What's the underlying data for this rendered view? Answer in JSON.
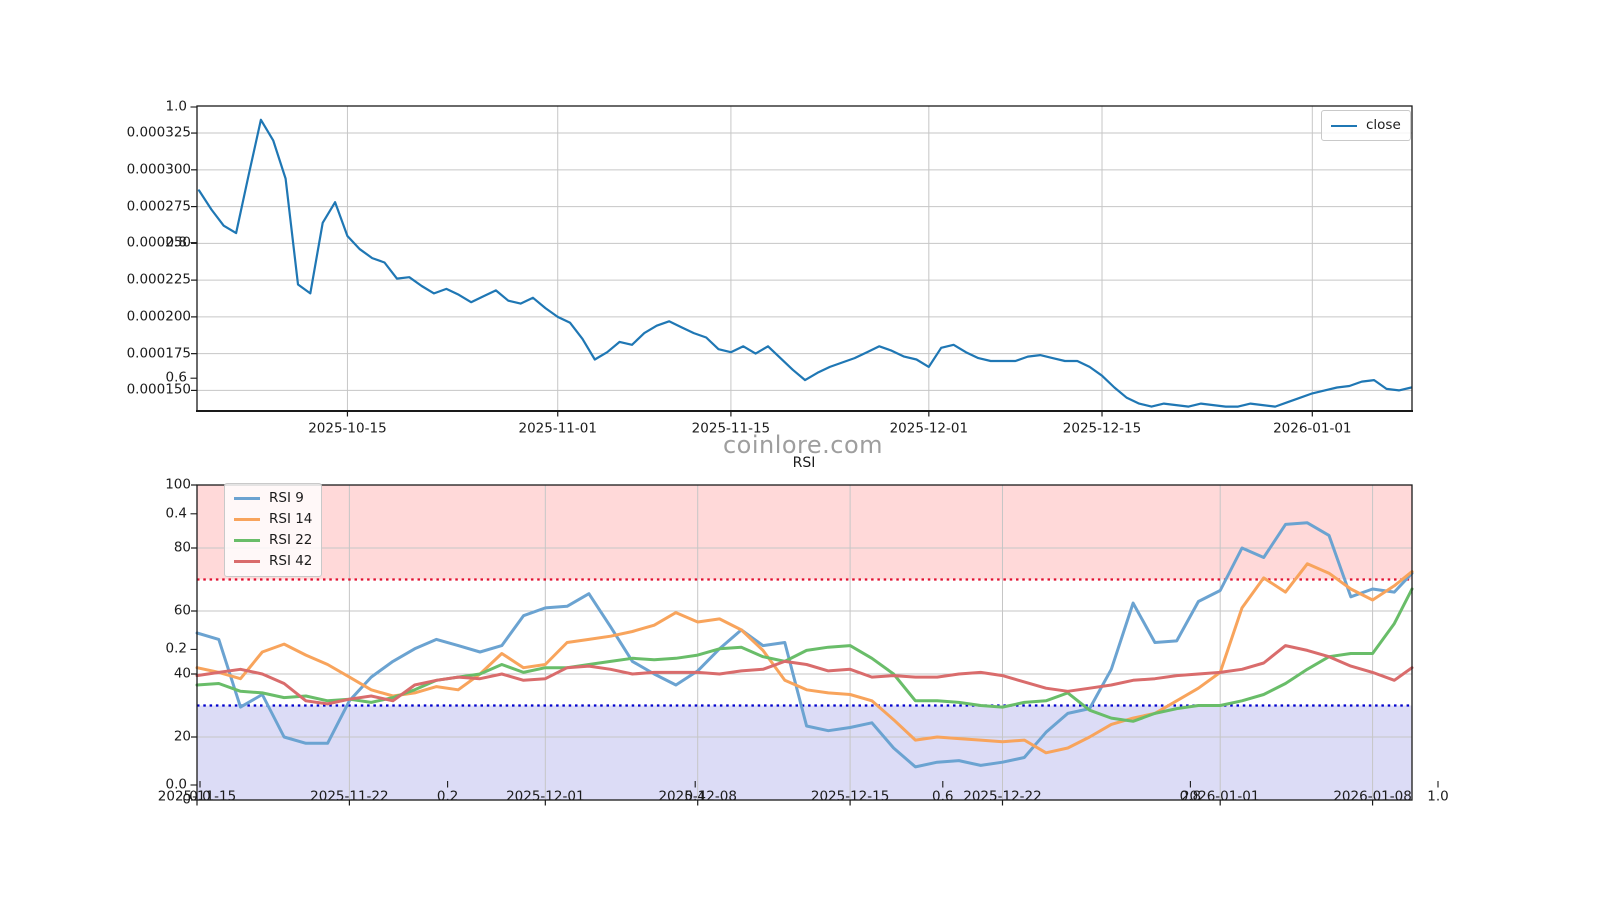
{
  "watermark": {
    "text": "coinlore.com",
    "color": "#8e8e8e"
  },
  "overlay_axis": {
    "y_tick_labels": [
      "1.0",
      "0.8",
      "0.6",
      "0.4",
      "0.2",
      "0.0"
    ],
    "x_tick_labels": [
      "0.0",
      "0.2",
      "0.4",
      "0.6",
      "0.8",
      "1.0"
    ]
  },
  "chart_data": [
    {
      "id": "price",
      "type": "line",
      "title": "",
      "grid": true,
      "legend_position": "upper right",
      "x_tick_labels": [
        "2025-10-15",
        "2025-11-01",
        "2025-11-15",
        "2025-12-01",
        "2025-12-15",
        "2026-01-01"
      ],
      "x_tick_day_offsets": [
        12,
        29,
        43,
        59,
        73,
        90
      ],
      "y_tick_labels": [
        "0.000150",
        "0.000175",
        "0.000200",
        "0.000225",
        "0.000250",
        "0.000275",
        "0.000300",
        "0.000325"
      ],
      "y_tick_values": [
        0.00015,
        0.000175,
        0.0002,
        0.000225,
        0.00025,
        0.000275,
        0.0003,
        0.000325
      ],
      "ylim": [
        0.000136,
        0.0003434
      ],
      "frequency": "daily",
      "series": [
        {
          "name": "close",
          "color": "#1f77b4",
          "values": [
            0.000286,
            0.000273,
            0.000262,
            0.000257,
            0.000296,
            0.000334,
            0.00032,
            0.000294,
            0.000222,
            0.000216,
            0.000264,
            0.000278,
            0.000255,
            0.000246,
            0.00024,
            0.000237,
            0.000226,
            0.000227,
            0.000221,
            0.000216,
            0.000219,
            0.000215,
            0.00021,
            0.000214,
            0.000218,
            0.000211,
            0.000209,
            0.000213,
            0.000206,
            0.0002,
            0.000196,
            0.000185,
            0.000171,
            0.000176,
            0.000183,
            0.000181,
            0.000189,
            0.000194,
            0.000197,
            0.000193,
            0.000189,
            0.000186,
            0.000178,
            0.000176,
            0.00018,
            0.000175,
            0.00018,
            0.000172,
            0.000164,
            0.000157,
            0.000162,
            0.000166,
            0.000169,
            0.000172,
            0.000176,
            0.00018,
            0.000177,
            0.000173,
            0.000171,
            0.000166,
            0.000179,
            0.000181,
            0.000176,
            0.000172,
            0.00017,
            0.00017,
            0.00017,
            0.000173,
            0.000174,
            0.000172,
            0.00017,
            0.00017,
            0.000166,
            0.00016,
            0.000152,
            0.000145,
            0.000141,
            0.000139,
            0.000141,
            0.00014,
            0.000139,
            0.000141,
            0.00014,
            0.000139,
            0.000139,
            0.000141,
            0.00014,
            0.000139,
            0.000142,
            0.000145,
            0.000148,
            0.00015,
            0.000152,
            0.000153,
            0.000156,
            0.000157,
            0.000151,
            0.00015,
            0.000152
          ]
        }
      ]
    },
    {
      "id": "rsi",
      "type": "line",
      "title": "RSI",
      "grid": true,
      "legend_position": "upper left",
      "x_tick_labels": [
        "2025-11-15",
        "2025-11-22",
        "2025-12-01",
        "2025-12-08",
        "2025-12-15",
        "2025-12-22",
        "2026-01-01",
        "2026-01-08"
      ],
      "x_tick_day_offsets": [
        0,
        7,
        16,
        23,
        30,
        37,
        47,
        54
      ],
      "y_tick_labels": [
        "0",
        "20",
        "40",
        "60",
        "80",
        "100"
      ],
      "y_tick_values": [
        0,
        20,
        40,
        60,
        80,
        100
      ],
      "ylim": [
        0,
        100
      ],
      "frequency": "daily",
      "overbought_band": {
        "from": 70,
        "to": 100,
        "fill": "#ffd9d9",
        "line": "#e01030"
      },
      "oversold_band": {
        "from": 0,
        "to": 30,
        "fill": "#dcdcf6",
        "line": "#0000cc"
      },
      "series": [
        {
          "name": "RSI 9",
          "color": "#6ba3d1",
          "values": [
            53,
            51,
            29.5,
            33.5,
            20,
            18,
            18,
            31.5,
            39,
            44,
            48,
            51,
            49,
            47,
            49,
            58.5,
            61,
            61.5,
            65.5,
            55,
            44,
            40,
            36.5,
            41,
            48,
            54,
            49,
            50,
            23.5,
            22,
            23,
            24.5,
            16.5,
            10.5,
            12,
            12.5,
            11,
            12,
            13.5,
            21.5,
            27.5,
            29,
            41.5,
            62.5,
            50,
            50.5,
            63,
            66.5,
            80,
            77,
            87.5,
            88,
            84,
            64.5,
            67,
            66,
            72
          ]
        },
        {
          "name": "RSI 14",
          "color": "#f8a45c",
          "values": [
            42,
            40.5,
            38.5,
            47,
            49.5,
            46,
            43,
            39,
            35,
            33,
            34,
            36,
            35,
            40,
            46.5,
            42,
            43,
            50,
            51,
            52,
            53.5,
            55.5,
            59.5,
            56.5,
            57.5,
            54,
            47.5,
            38,
            35,
            34,
            33.5,
            31.5,
            25.5,
            19,
            20,
            19.5,
            19,
            18.5,
            19,
            15,
            16.5,
            20,
            24,
            26,
            27.5,
            31.5,
            35.5,
            40.5,
            61,
            70.5,
            66,
            75,
            72,
            67,
            63.5,
            68,
            72.5
          ]
        },
        {
          "name": "RSI 22",
          "color": "#69bd69",
          "values": [
            36.5,
            37,
            34.5,
            34,
            32.5,
            33,
            31.5,
            32,
            31,
            32.5,
            35,
            38,
            39,
            40,
            43,
            40.5,
            42,
            42,
            43,
            44,
            45,
            44.5,
            45,
            46,
            48,
            48.5,
            45.5,
            44,
            47.5,
            48.5,
            49,
            45,
            40,
            31.5,
            31.5,
            31,
            30,
            29.5,
            31,
            31.5,
            34,
            28.5,
            26,
            25,
            27.5,
            29,
            30,
            30,
            31.5,
            33.5,
            37,
            41.5,
            45.5,
            46.5,
            46.5,
            56,
            67
          ]
        },
        {
          "name": "RSI 42",
          "color": "#d96c6c",
          "values": [
            39.5,
            40.5,
            41.5,
            40,
            37,
            31.5,
            30.5,
            32,
            33,
            31.5,
            36.5,
            38,
            39,
            38.5,
            40,
            38,
            38.5,
            42,
            42.5,
            41.5,
            40,
            40.5,
            40.5,
            40.5,
            40,
            41,
            41.5,
            44,
            43,
            41,
            41.5,
            39,
            39.5,
            39,
            39,
            40,
            40.5,
            39.5,
            37.5,
            35.5,
            34.5,
            35.5,
            36.5,
            38,
            38.5,
            39.5,
            40,
            40.5,
            41.5,
            43.5,
            49,
            47.5,
            45.5,
            42.5,
            40.5,
            38,
            42
          ]
        }
      ]
    }
  ]
}
